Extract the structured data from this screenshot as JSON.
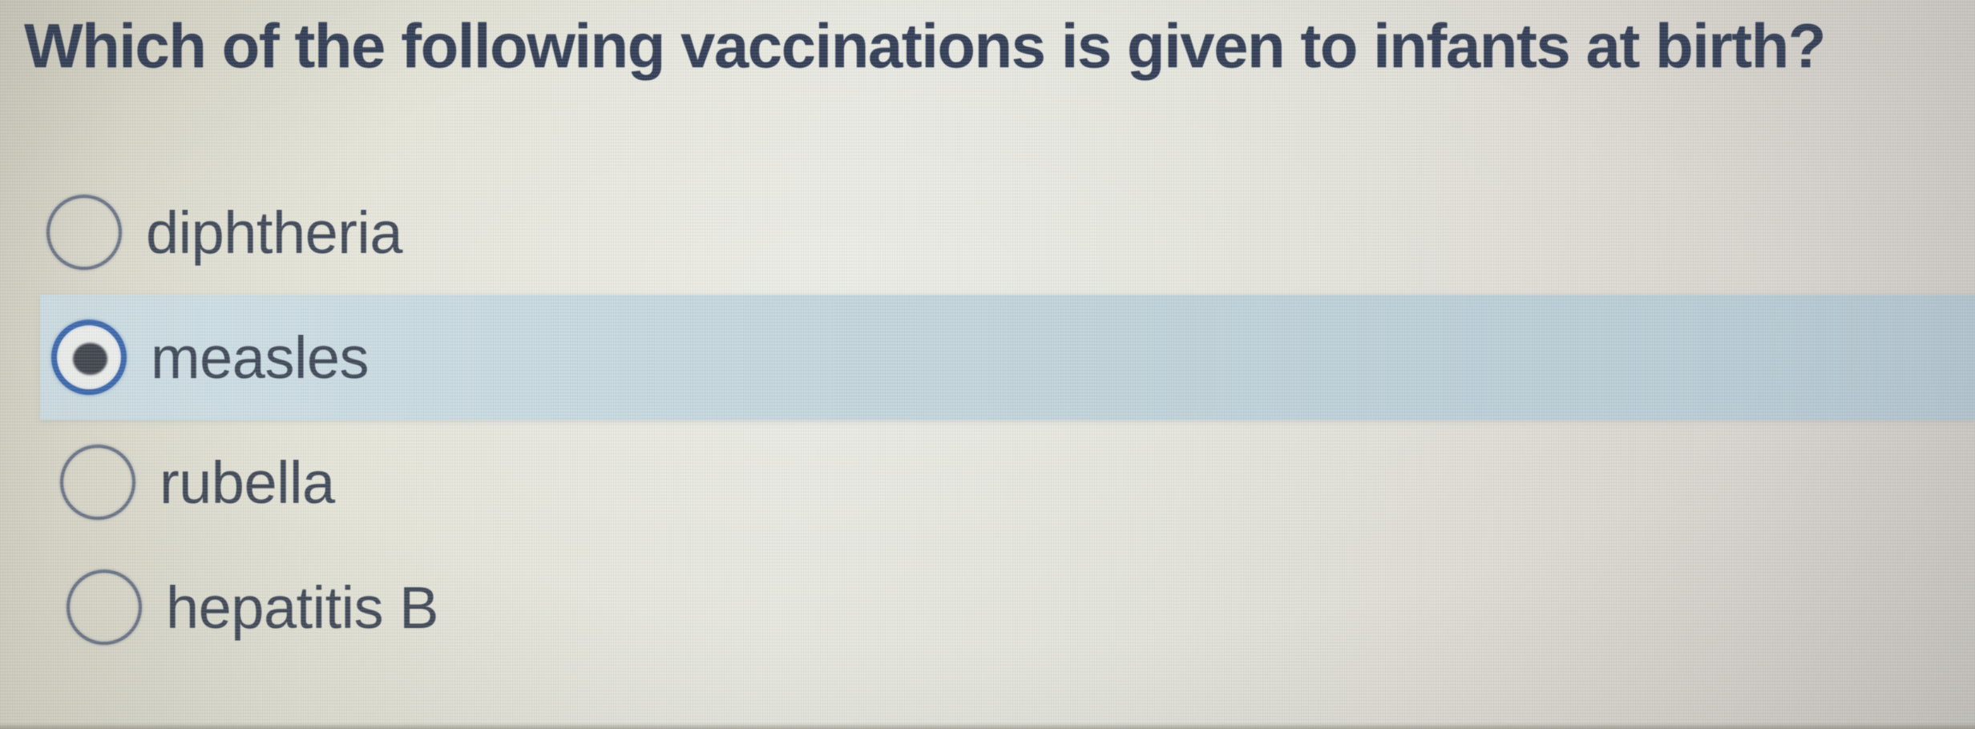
{
  "question": {
    "title": "Which of the following vaccinations is given to infants at birth?"
  },
  "options": [
    {
      "label": "diphtheria",
      "selected": false
    },
    {
      "label": "measles",
      "selected": true
    },
    {
      "label": "rubella",
      "selected": false
    },
    {
      "label": "hepatitis B",
      "selected": false
    }
  ],
  "colors": {
    "background": "#e3e3d9",
    "highlight_band": "#c4d7de",
    "title_text": "#2f3b54",
    "option_text": "#3e4757",
    "radio_ring": "#6a7488",
    "radio_ring_selected": "#3a67ae",
    "radio_dot": "#3e434c"
  }
}
